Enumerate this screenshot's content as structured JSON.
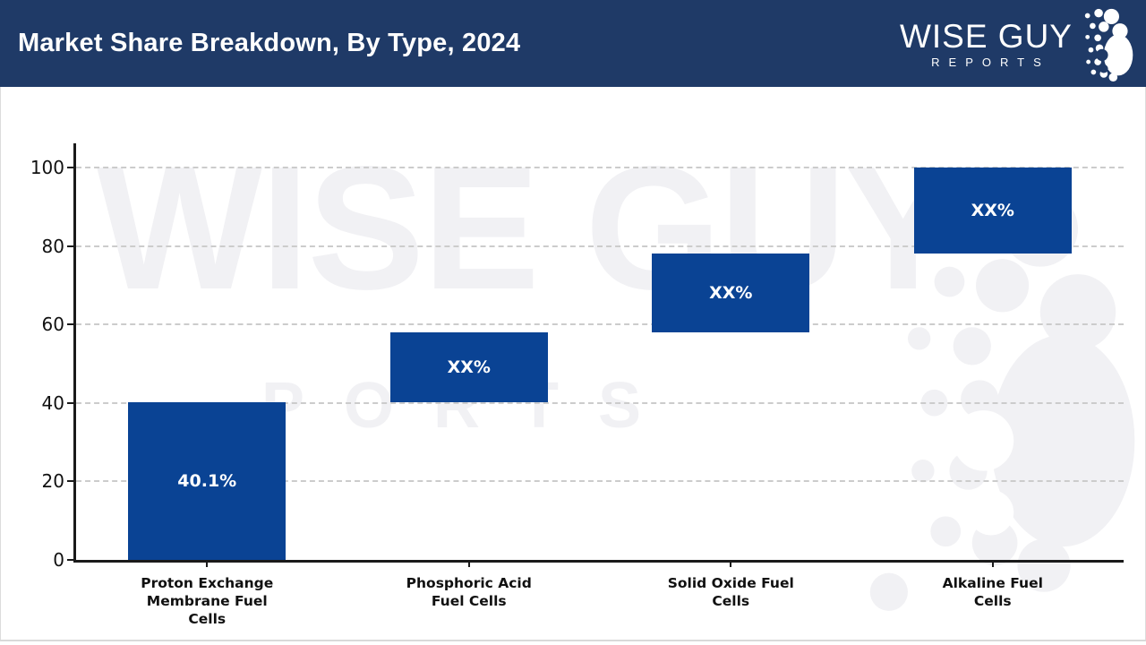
{
  "header": {
    "title": "Market Share Breakdown, By Type, 2024",
    "logo": {
      "line1": "WISE GUY",
      "line2": "REPORTS"
    }
  },
  "watermark": {
    "line1": "WISE GUY",
    "line2": "PORTS"
  },
  "colors": {
    "header_bg": "#1f3a67",
    "bar": "#0a4394",
    "gridline": "#cccccc",
    "axis": "#1a1a1a",
    "watermark": "#f1f1f4",
    "bar_label": "#ffffff",
    "card_border": "#dcdcdc"
  },
  "chart_data": {
    "type": "bar",
    "variant": "waterfall",
    "title": "Market Share Breakdown, By Type, 2024",
    "categories": [
      "Proton Exchange Membrane Fuel Cells",
      "Phosphoric Acid Fuel Cells",
      "Solid Oxide Fuel Cells",
      "Alkaline Fuel Cells"
    ],
    "label_lines": [
      [
        "Proton Exchange",
        "Membrane Fuel",
        "Cells"
      ],
      [
        "Phosphoric Acid",
        "Fuel Cells"
      ],
      [
        "Solid Oxide Fuel",
        "Cells"
      ],
      [
        "Alkaline Fuel",
        "Cells"
      ]
    ],
    "segments": [
      {
        "start": 0,
        "end": 40.1,
        "label": "40.1%"
      },
      {
        "start": 40.1,
        "end": 58.1,
        "label": "XX%"
      },
      {
        "start": 58.1,
        "end": 78.0,
        "label": "XX%"
      },
      {
        "start": 78.0,
        "end": 100.0,
        "label": "XX%"
      }
    ],
    "ylim": [
      0,
      100
    ],
    "yticks": [
      0,
      20,
      40,
      60,
      80,
      100
    ],
    "grid": {
      "horizontal": true,
      "style": "dashed"
    },
    "legend": null,
    "xlabel": "",
    "ylabel": ""
  }
}
